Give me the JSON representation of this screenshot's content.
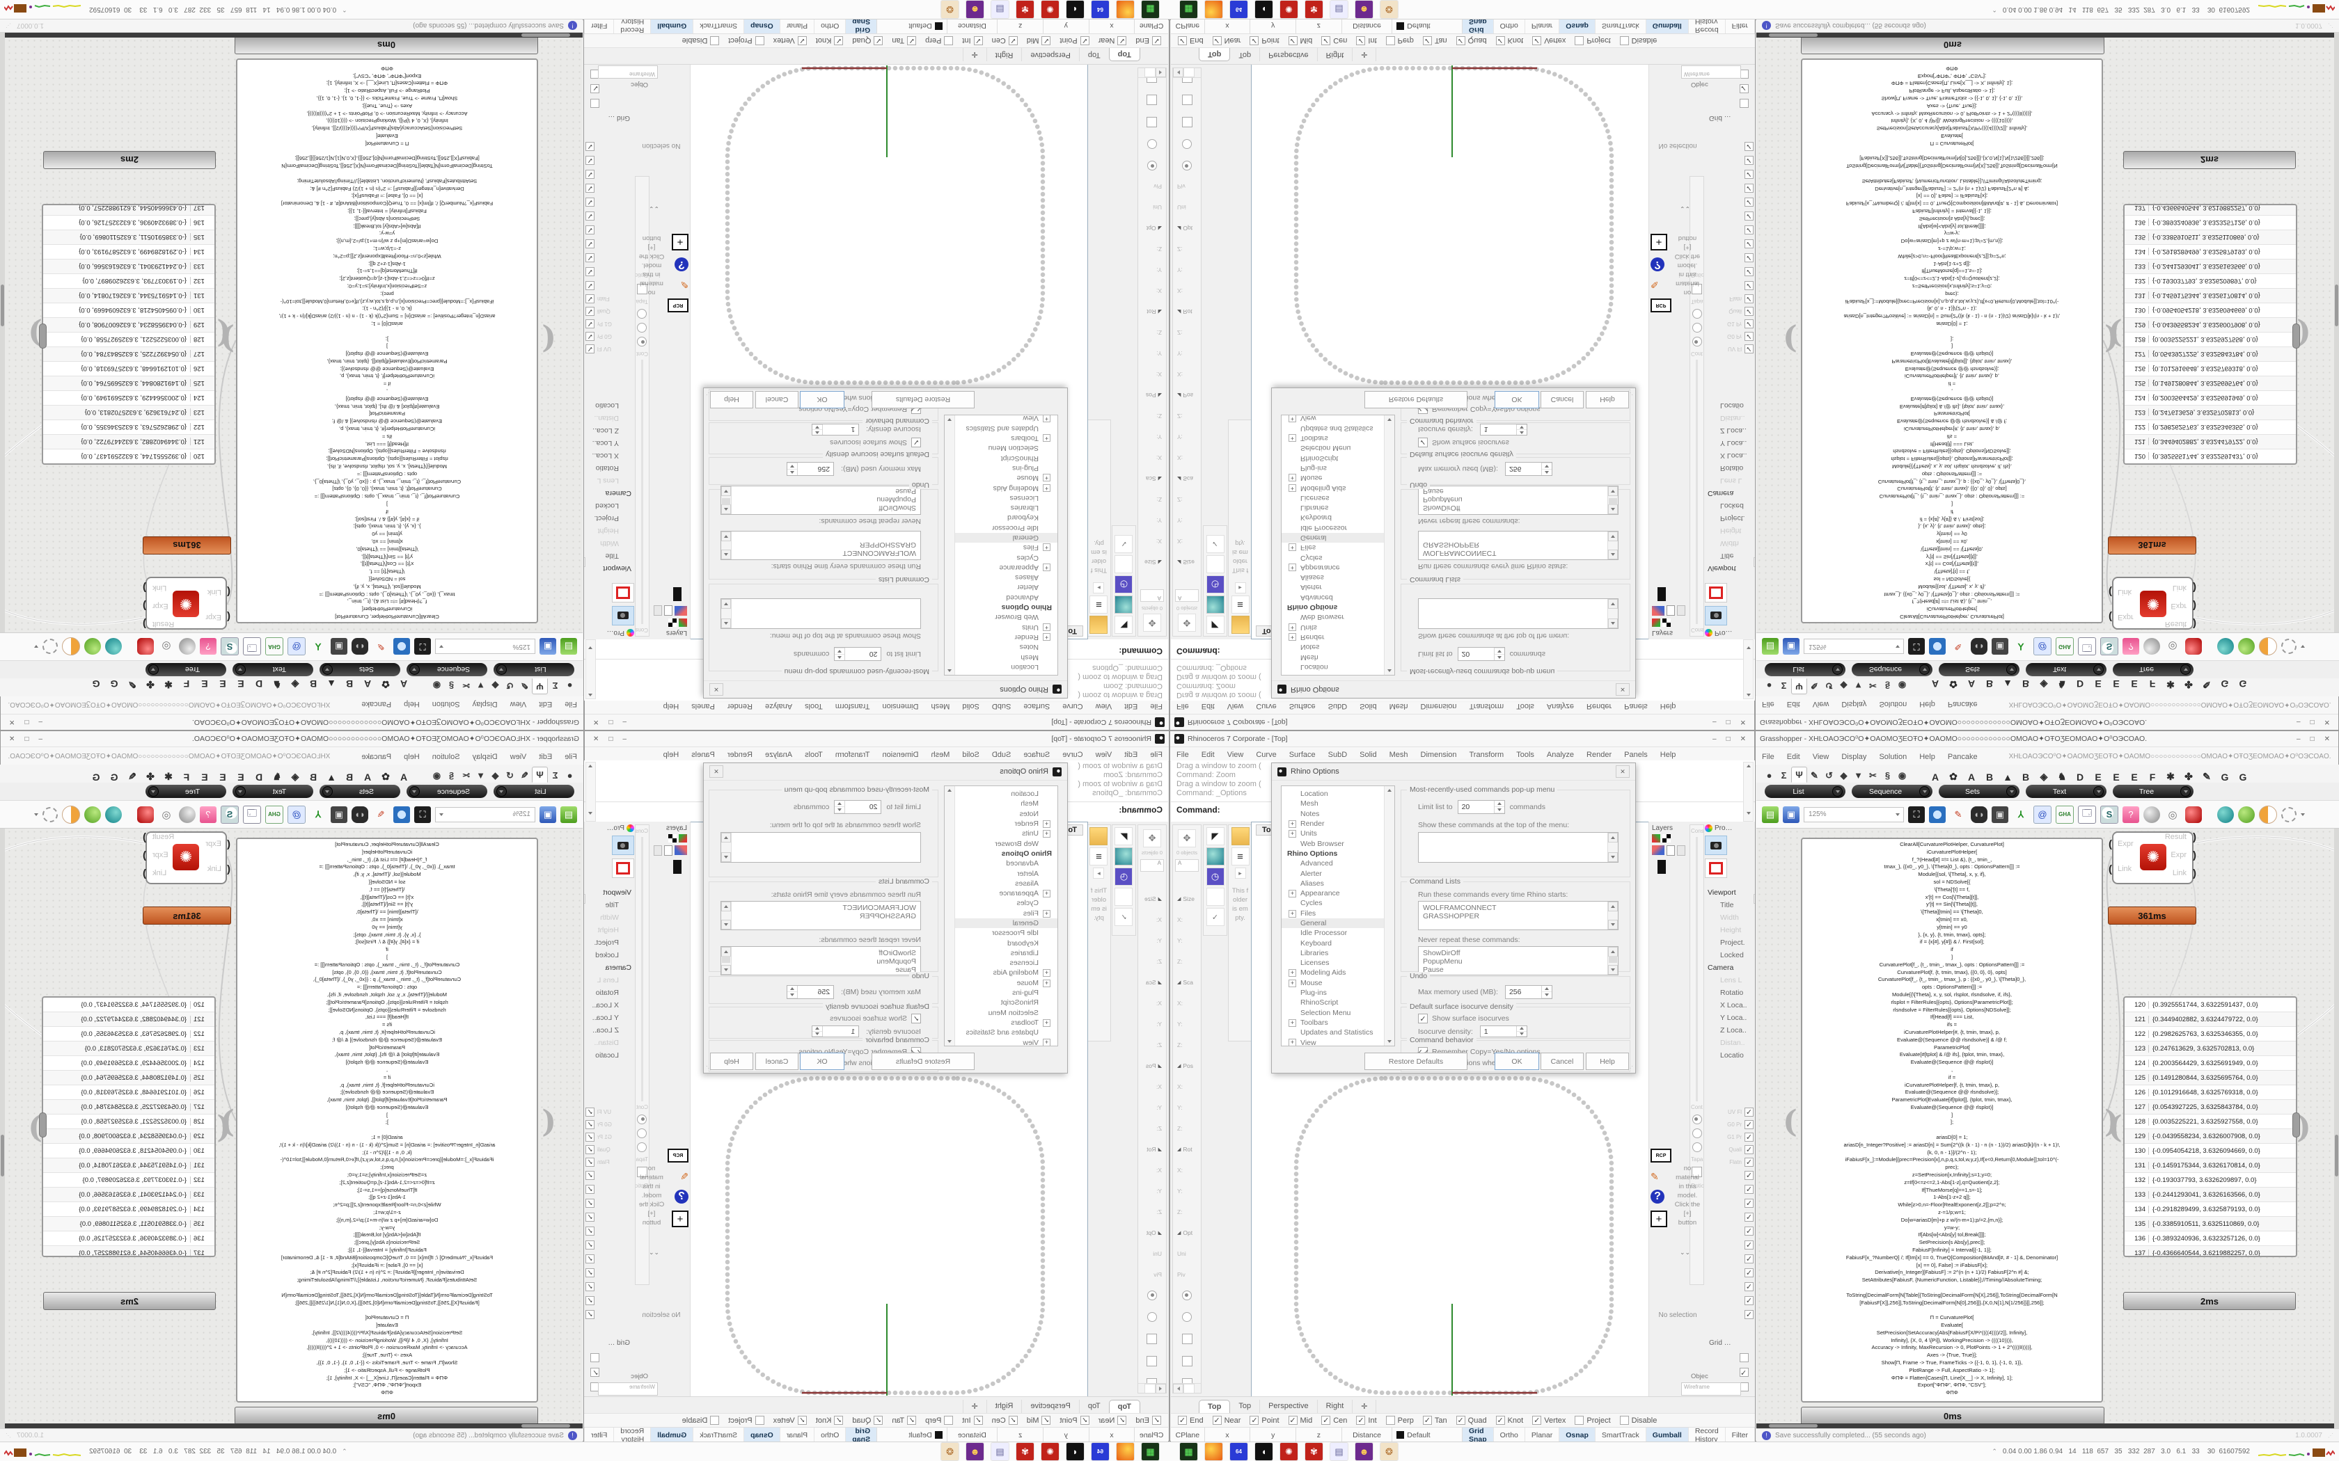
{
  "rhino": {
    "title": "Rhinoceros 7 Corporate - [Top]",
    "window_buttons": {
      "min": "–",
      "max": "□",
      "close": "✕"
    },
    "menus": [
      "File",
      "Edit",
      "View",
      "Curve",
      "Surface",
      "SubD",
      "Solid",
      "Mesh",
      "Dimension",
      "Transform",
      "Tools",
      "Analyze",
      "Render",
      "Panels",
      "Help"
    ],
    "command_history": [
      "Drag a window to zoom (",
      "Command: Zoom",
      "Drag a window to zoom (",
      "Command: _Options"
    ],
    "command_prompt": "Command:",
    "viewport_chip": "Top",
    "viewport_tabs": [
      {
        "label": "Top",
        "active": true
      },
      {
        "label": "Top"
      },
      {
        "label": "Perspective"
      },
      {
        "label": "Right"
      },
      {
        "label": "✛"
      }
    ],
    "boxedit": {
      "count": "0 objects",
      "rows": [
        {
          "label": "Size",
          "section": true
        },
        {
          "label": "X:"
        },
        {
          "label": "Y:"
        },
        {
          "label": "Z:"
        },
        {
          "label": "Sca",
          "section": true
        },
        {
          "label": "X:"
        },
        {
          "label": "Y:"
        },
        {
          "label": "Z:"
        },
        {
          "label": "Pos",
          "section": true
        },
        {
          "label": "X:"
        },
        {
          "label": "Y:"
        },
        {
          "label": "Z:"
        },
        {
          "label": "Rot",
          "section": true
        },
        {
          "label": "X:"
        },
        {
          "label": "Y:"
        },
        {
          "label": "Z:"
        },
        {
          "label": "Opt",
          "section": true
        },
        {
          "label": "Uni"
        },
        {
          "label": "Piv"
        }
      ]
    },
    "folder_note": "This folder is empty.",
    "osnap": [
      {
        "label": "End",
        "checked": true
      },
      {
        "label": "Near",
        "checked": true
      },
      {
        "label": "Point",
        "checked": true
      },
      {
        "label": "Mid",
        "checked": true
      },
      {
        "label": "Cen",
        "checked": true
      },
      {
        "label": "Int",
        "checked": true
      },
      {
        "label": "Perp"
      },
      {
        "label": "Tan",
        "checked": true
      },
      {
        "label": "Quad",
        "checked": true
      },
      {
        "label": "Knot",
        "checked": true
      },
      {
        "label": "Vertex",
        "checked": true
      },
      {
        "label": "Project"
      },
      {
        "label": "Disable"
      }
    ],
    "status_cells": [
      "CPlane",
      "x",
      "y",
      "z",
      "Distance"
    ],
    "status_default": "Default",
    "status_toggles": [
      {
        "label": "Grid Snap",
        "active": true
      },
      {
        "label": "Ortho"
      },
      {
        "label": "Planar"
      },
      {
        "label": "Osnap",
        "active": true
      },
      {
        "label": "SmartTrack"
      },
      {
        "label": "Gumball",
        "active": true
      },
      {
        "label": "Record History"
      },
      {
        "label": "Filter"
      }
    ],
    "layers_label": "Layers",
    "properties": {
      "tab": "Pro…",
      "rows": [
        {
          "label": "Viewport",
          "section": true
        },
        {
          "label": "Title"
        },
        {
          "label": "Width",
          "dim": true
        },
        {
          "label": "Height",
          "dim": true
        },
        {
          "label": "Project."
        },
        {
          "label": "Locked"
        },
        {
          "label": "Camera",
          "section": true
        },
        {
          "label": "Lens L",
          "dim": true
        },
        {
          "label": "Rotatio"
        },
        {
          "label": "X Loca.."
        },
        {
          "label": "Y Loca.."
        },
        {
          "label": "Z Loca.."
        },
        {
          "label": "Distan..",
          "dim": true
        },
        {
          "label": "Locatio"
        }
      ]
    },
    "display_checks": [
      "UV Fl",
      "G0 Pr",
      "G1 Pr",
      "Quali",
      "Flatn"
    ],
    "rcp": "RCP",
    "material_note": "no material in this model. Click the [+] button",
    "material_more": "⌄⌄",
    "no_selection": "No selection",
    "grid_label": "Grid …",
    "objec_label": "Objec",
    "wireframe_label": "Wireframe",
    "constraint_labels": [
      "Constra",
      "Cont",
      "Tapa",
      "Option"
    ]
  },
  "options_dialog": {
    "title": "Rhino Options",
    "close": "✕",
    "tree": [
      {
        "label": "Location"
      },
      {
        "label": "Mesh"
      },
      {
        "label": "Notes"
      },
      {
        "label": "Render",
        "expand": true
      },
      {
        "label": "Units",
        "expand": true
      },
      {
        "label": "Web Browser"
      },
      {
        "label": "Rhino Options",
        "header": true
      },
      {
        "label": "Advanced"
      },
      {
        "label": "Alerter"
      },
      {
        "label": "Aliases"
      },
      {
        "label": "Appearance",
        "expand": true
      },
      {
        "label": "Cycles"
      },
      {
        "label": "Files",
        "expand": true
      },
      {
        "label": "General",
        "selected": true
      },
      {
        "label": "Idle Processor"
      },
      {
        "label": "Keyboard"
      },
      {
        "label": "Libraries"
      },
      {
        "label": "Licenses"
      },
      {
        "label": "Modeling Aids",
        "expand": true
      },
      {
        "label": "Mouse",
        "expand": true
      },
      {
        "label": "Plug-ins"
      },
      {
        "label": "RhinoScript"
      },
      {
        "label": "Selection Menu"
      },
      {
        "label": "Toolbars",
        "expand": true
      },
      {
        "label": "Updates and Statistics"
      },
      {
        "label": "View",
        "expand": true
      }
    ],
    "mru_group": "Most-recently-used commands pop-up menu",
    "limit_label": "Limit list to",
    "limit_value": "20",
    "limit_suffix": "commands",
    "show_label": "Show these commands at the top of the menu:",
    "lists_group": "Command Lists",
    "run_label": "Run these commands every time Rhino starts:",
    "run_items": [
      "WOLFRAMCONNECT",
      "GRASSHOPPER"
    ],
    "never_label": "Never repeat these commands:",
    "never_items": [
      "ShowDirOff",
      "PopupMenu",
      "Pause"
    ],
    "undo_group": "Undo",
    "undo_label": "Max memory used (MB):",
    "undo_value": "256",
    "iso_group": "Default surface isocurve density",
    "iso_check": "Show surface isocurves",
    "iso_label": "Isocurve density:",
    "iso_value": "1",
    "beh_group": "Command behavior",
    "beh_checks": [
      {
        "label": "Remember Copy=Yes/No options",
        "checked": true
      },
      {
        "label": "Use extrusions when possible",
        "checked": true
      }
    ],
    "buttons": {
      "restore": "Restore Defaults",
      "ok": "OK",
      "cancel": "Cancel",
      "help": "Help"
    }
  },
  "grasshopper": {
    "title": "Grasshopper - XHĿOАOЭCO⁰O✦OАOМOƷEOŦO✦OАOМO○○○○○○○○○○○○OМOАO✦OŦOƷEOМOАO✦O⁰OЭCOАO.",
    "doc_name": "XHĿOАOЭCO⁰O✦OАOМOƷEOŦO✦OАOМO○○○○○○○○○○○○OМOАO✦OŦOƷEOМOАO✦O⁰OЭCOАO.",
    "menus": [
      "File",
      "Edit",
      "View",
      "Display",
      "Solution",
      "Help",
      "Pancake"
    ],
    "param_tabs": [
      {
        "g": "●"
      },
      {
        "g": "Σ"
      },
      {
        "g": "Ψ",
        "selected": true
      },
      {
        "g": "✎"
      },
      {
        "g": "↺"
      },
      {
        "g": "◆"
      },
      {
        "g": "▼"
      },
      {
        "g": "✂"
      },
      {
        "g": "§"
      },
      {
        "g": "◉"
      }
    ],
    "letter_tabs": [
      "A",
      "✿",
      "A",
      "B",
      "▲",
      "B",
      "◈",
      "♞",
      "D",
      "E",
      "E",
      "E",
      "F",
      "✱",
      "✤",
      "✎",
      "G",
      "G"
    ],
    "subcats": [
      "List",
      "Sequence",
      "Sets",
      "Text",
      "Tree"
    ],
    "zoom_level": "125%",
    "gha": "GHA",
    "mag_s": "S",
    "component": {
      "inputs": [
        "Expr",
        "Link"
      ],
      "outputs": [
        "Result",
        "Expr",
        "Link"
      ],
      "time": "361ms"
    },
    "code_time": "0ms",
    "list_time": "2ms",
    "status": "Save successfully completed... (55 seconds ago)",
    "version": "1.0.0007",
    "code_lines": [
      "ClearAll[CurvaturePlotHelper, CurvaturePlot]",
      "iCurvaturePlotHelper[",
      "f_?(Head[#] =!= List &), {t_, tmin_,",
      "tmax_}, {{x0_, y0_}, \\[Theta]0_}, opts : OptionsPattern[]] :=",
      "Module[{sol, \\[Theta], x, y, if},",
      "sol = NDSolve[{",
      "\\[Theta]'[t] == f,",
      "x'[t] == Cos[\\[Theta][t]],",
      "y'[t] == Sin[\\[Theta][t]],",
      "\\[Theta][tmin] == \\[Theta]0,",
      "x[tmin] == x0,",
      "y[tmin] == y0",
      "}, {x, y}, {t, tmin, tmax}, opts];",
      "if = {x[#], y[#]} & /. First[sol];",
      "if",
      "]",
      "CurvaturePlot[f_, {t_, tmin_, tmax_}, opts : OptionsPattern[]] :=",
      "CurvaturePlot[f, {t, tmin, tmax}, {{0, 0}, 0}, opts]",
      "CurvaturePlot[f_, {t_, tmin_, tmax_}, p : {{x0_, y0_}, \\[Theta]0_},",
      "opts : OptionsPattern[]] :=",
      "Module[{\\[Theta], x, y, sol, rlsplot, rlsndsolve, if, ifs},",
      "rlsplot = FilterRules[{opts}, Options[ParametricPlot]];",
      "rlsndsolve = FilterRules[{opts}, Options[NDSolve]];",
      "If[Head[f] === List,",
      "ifs =",
      "iCurvaturePlotHelper[#, {t, tmin, tmax}, p,",
      "Evaluate@(Sequence @@ rlsndsolve)] & /@ f;",
      "ParametricPlot[",
      "Evaluate[#[tplot] & /@ ifs], {tplot, tmin, tmax},",
      "Evaluate@(Sequence @@ rlsplot)]",
      ",",
      "if =",
      "iCurvaturePlotHelper[f, {t, tmin, tmax}, p,",
      "Evaluate@(Sequence @@ rlsndsolve)];",
      "ParametricPlot[Evaluate[if[tplot]], {tplot, tmin, tmax},",
      "Evaluate@(Sequence @@ rlsplot)]",
      "]",
      "];",
      "",
      "ariasD[0] = 1;",
      "ariasD[n_Integer?Positive] := ariasD[n] = Sum[2^((k (k - 1) - n (n - 1))/2) ariasD[k]/(n - k + 1)!,",
      "{k, 0, n - 1}]/(2^n - 1);",
      "iFabiusF[x_]:=Module[{prec=Precision[x],n,p,q,s,tol,w,y,z},If[x<0,Return[0,Module]];tol=10^(-",
      "prec);",
      "z=SetPrecision[x,Infinity];s=1;y=0;",
      "z=If[0<=z<=2,1-Abs[1-z],q=Quotient[z,2];",
      "If[ThueMorse[q]==1,s=-1];",
      "1-Abs[1-z+2 q]];",
      "While[z>0,n=-Floor[RealExponent[z,2]];p=2^n;",
      "z-=1/p;w=1;",
      "Do[w=ariasD[m]+p z w/(n-m+1);p/=2,{m,n}];",
      "y=w-y;",
      "If[Abs[w]<Abs[y] tol,Break[]]];",
      "SetPrecision[s Abs[y],prec]];",
      "FabiusF[Infinity] = Interval[{-1, 1}];",
      "FabiusF[x_?NumberQ] /; If[Im[x] == 0, TrueQ[Composition[BitAnd[#, # - 1] &, Denominator]",
      "[x] == 0], False] := iFabiusF[x];",
      "Derivative[n_Integer][FabiusF] := 2^(n (n + 1)/2) FabiusF[2^n #] &;",
      "SetAttributes[FabiusF, {NumericFunction, Listable}];//Timing//AbsoluteTiming;",
      "",
      "ToString[DecimalForm[N[Table[{ToString[DecimalForm[N[X],256]],ToString[DecimalForm[N",
      "[FabiusF[X]],256]],ToString[DecimalForm[N[0],256]]},{X,0,N[1],N[1/256]}]],256]];",
      "",
      "Π = CurvaturePlot[",
      "Evaluate[",
      "SetPrecision[SetAccuracy[Abs[FabiusF[X/Pi*((((4))))/2]], Infinity],",
      "Infinity], {X, 0, 4 \\[Pi]}, WorkingPrecision -> ((((10)))),",
      "Accuracy -> Infinity, MaxRecursion -> 0, PlotPoints -> 1 + 2^((((8))))],",
      "Axes -> {True, True}];",
      "Show[Π, Frame -> True, FrameTicks -> {{-1, 0, 1}, {-1, 0, 1}},",
      "PlotRange -> Full, AspectRatio -> 1];",
      "ΦΠΦ = Flatten[Cases[Π, Line[X__] -> X, Infinity], 1];",
      "Export[\"ΦΠΦ\", ΦΠΦ, \"CSV\"];",
      "ΦΠΦ"
    ],
    "list_rows": [
      {
        "i": "120",
        "v": "{0.3925551744, 3.6322591437, 0.0}"
      },
      {
        "i": "121",
        "v": "{0.3449402882, 3.6324479722, 0.0}"
      },
      {
        "i": "122",
        "v": "{0.2982625763, 3.6325346355, 0.0}"
      },
      {
        "i": "123",
        "v": "{0.247613629, 3.6325702813, 0.0}"
      },
      {
        "i": "124",
        "v": "{0.2003564429, 3.6325691949, 0.0}"
      },
      {
        "i": "125",
        "v": "{0.1491280844, 3.6325695764, 0.0}"
      },
      {
        "i": "126",
        "v": "{0.1012916648, 3.6325769318, 0.0}"
      },
      {
        "i": "127",
        "v": "{0.0543927225, 3.6325843784, 0.0}"
      },
      {
        "i": "128",
        "v": "{0.0035225221, 3.6325927558, 0.0}"
      },
      {
        "i": "129",
        "v": "{-0.0439558234, 3.6326007908, 0.0}"
      },
      {
        "i": "130",
        "v": "{-0.0954054218, 3.6326094669, 0.0}"
      },
      {
        "i": "131",
        "v": "{-0.1459175344, 3.6326170814, 0.0}"
      },
      {
        "i": "132",
        "v": "{-0.193037793, 3.6326209897, 0.0}"
      },
      {
        "i": "133",
        "v": "{-0.2441293041, 3.6326163566, 0.0}"
      },
      {
        "i": "134",
        "v": "{-0.2918289499, 3.6325879193, 0.0}"
      },
      {
        "i": "135",
        "v": "{-0.3385910511, 3.6325110869, 0.0}"
      },
      {
        "i": "136",
        "v": "{-0.3893240936, 3.6323257126, 0.0}"
      },
      {
        "i": "137",
        "v": "{-0.4366640544, 3.6219882257, 0.0}"
      }
    ]
  },
  "taskbar": {
    "stats": "0.04 0.00 1.86 0.94   14   118  657   35   332  287   3.0   6.1   33    30  61607592"
  }
}
